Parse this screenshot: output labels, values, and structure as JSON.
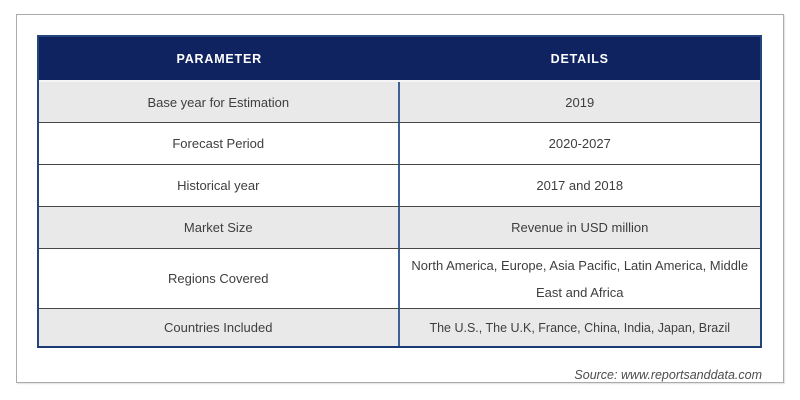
{
  "chart_data": {
    "type": "table",
    "columns": [
      "PARAMETER",
      "DETAILS"
    ],
    "rows": [
      [
        "Base year for Estimation",
        "2019"
      ],
      [
        "Forecast Period",
        "2020-2027"
      ],
      [
        "Historical year",
        "2017 and 2018"
      ],
      [
        "Market Size",
        "Revenue in USD million"
      ],
      [
        "Regions Covered",
        "North America, Europe, Asia Pacific, Latin America, Middle East and Africa"
      ],
      [
        "Countries Included",
        "The U.S., The  U.K, France, China, India, Japan, Brazil"
      ]
    ],
    "source": "Source: www.reportsanddata.com",
    "layout_hints": {
      "shaded_rows": [
        0,
        3,
        5
      ],
      "legend_position": "none",
      "grid": "on"
    }
  },
  "colors": {
    "header_bg": "#0f2361",
    "header_text": "#ffffff",
    "shaded_row_bg": "#e9e9e9",
    "row_bg": "#ffffff",
    "grid_line": "#474747",
    "column_divider": "#3c6197",
    "table_border": "#24447e",
    "card_border": "#ababab",
    "body_text": "#3e3e3e",
    "source_text": "#4c4c4c"
  }
}
